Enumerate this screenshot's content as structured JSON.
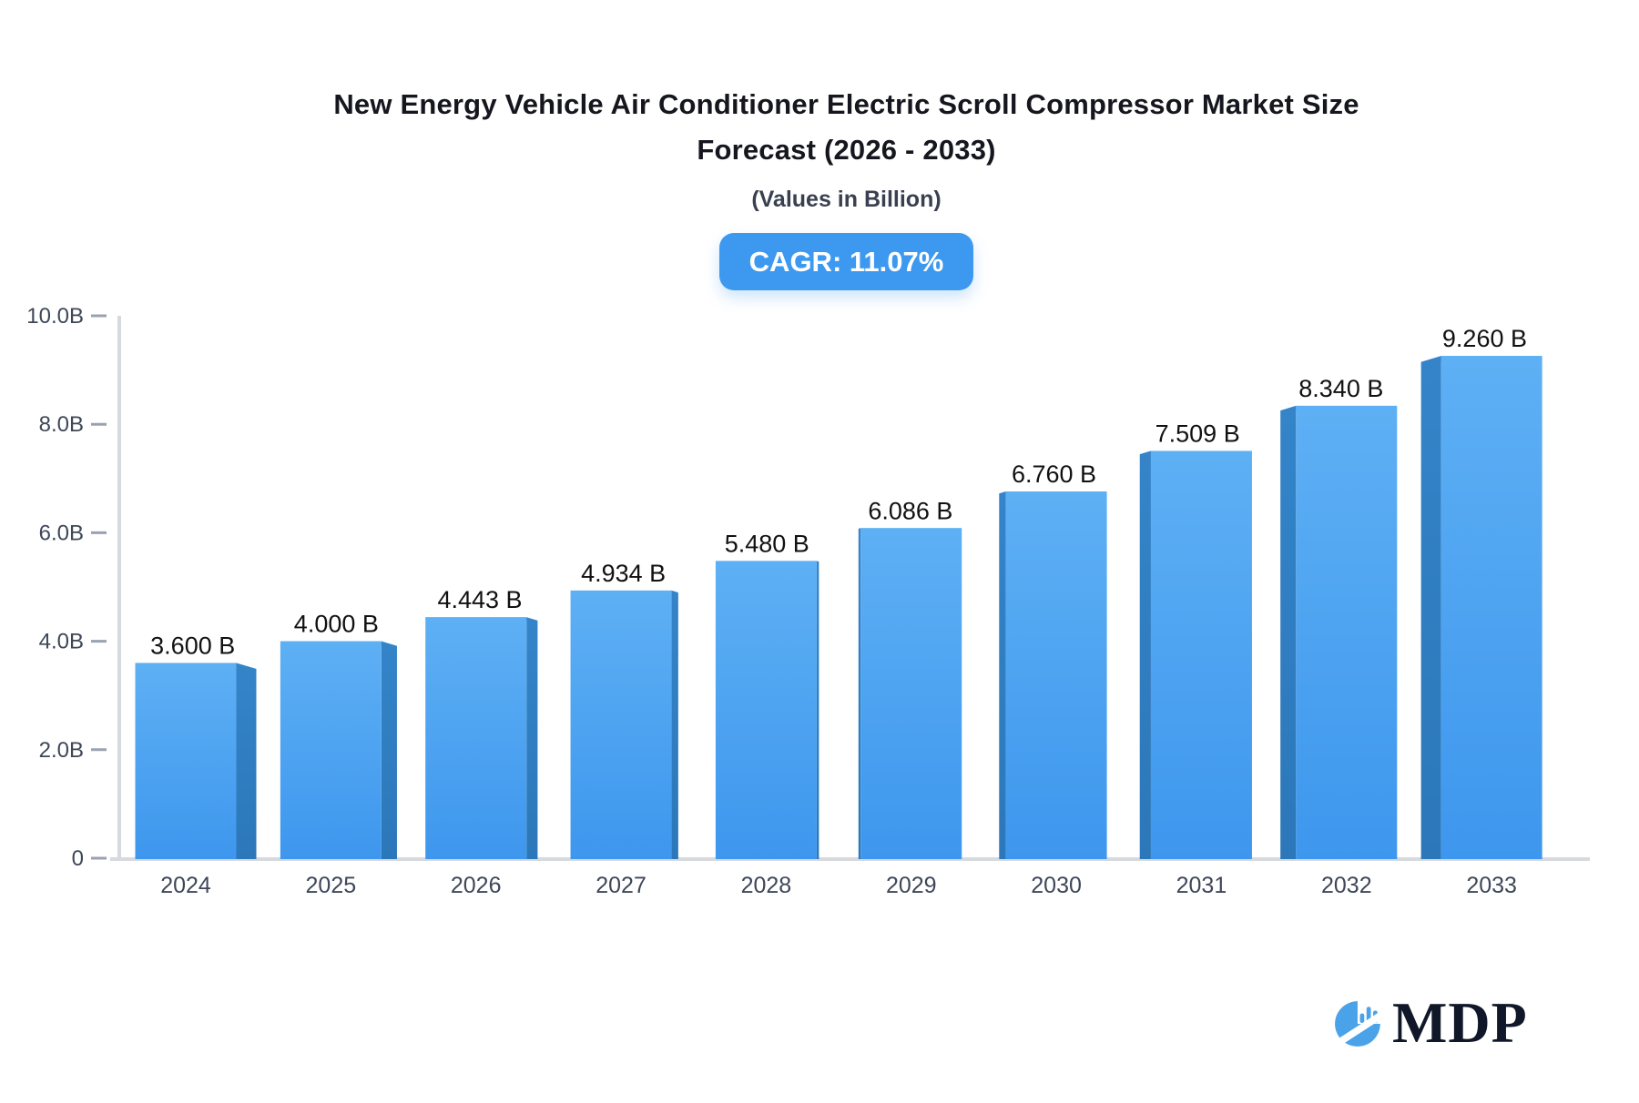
{
  "header": {
    "title_line1": "New Energy Vehicle Air Conditioner Electric Scroll Compressor Market Size",
    "title_line2": "Forecast (2026 - 2033)",
    "subtitle": "(Values in Billion)",
    "cagr_badge": "CAGR: 11.07%"
  },
  "chart_data": {
    "type": "bar",
    "title": "New Energy Vehicle Air Conditioner Electric Scroll Compressor Market Size Forecast (2026 - 2033)",
    "subtitle": "(Values in Billion)",
    "cagr": "11.07%",
    "unit": "Billion",
    "categories": [
      "2024",
      "2025",
      "2026",
      "2027",
      "2028",
      "2029",
      "2030",
      "2031",
      "2032",
      "2033"
    ],
    "values": [
      3.6,
      4.0,
      4.443,
      4.934,
      5.48,
      6.086,
      6.76,
      7.509,
      8.34,
      9.26
    ],
    "value_labels": [
      "3.600 B",
      "4.000 B",
      "4.443 B",
      "4.934 B",
      "5.480 B",
      "6.086 B",
      "6.760 B",
      "7.509 B",
      "8.340 B",
      "9.260 B"
    ],
    "xlabel": "",
    "ylabel": "",
    "ylim": [
      0,
      10
    ],
    "yticks": [
      {
        "value": 0,
        "label": "0"
      },
      {
        "value": 2,
        "label": "2.0B"
      },
      {
        "value": 4,
        "label": "4.0B"
      },
      {
        "value": 6,
        "label": "6.0B"
      },
      {
        "value": 8,
        "label": "8.0B"
      },
      {
        "value": 10,
        "label": "10.0B"
      }
    ],
    "grid": false,
    "legend": null,
    "bar_style": "3d-perspective-center-vanishing-point"
  },
  "colors": {
    "bar_front_top": "#5eb0f4",
    "bar_front_bottom": "#3e97ee",
    "bar_side_top": "#3584c9",
    "bar_side_bottom": "#2b77b9",
    "bar_top_face": "#7fc0f7",
    "badge_bg": "#3d99f0",
    "badge_text": "#ffffff",
    "axis_line": "#d6d9de",
    "tick_mark": "#9aa2b0",
    "axis_label": "#3e4758",
    "value_label": "#111111",
    "title": "#16161f",
    "subtitle": "#394050",
    "logo_blue": "#4aa2e9",
    "logo_text": "#101728"
  },
  "logo": {
    "text": "MDP"
  }
}
